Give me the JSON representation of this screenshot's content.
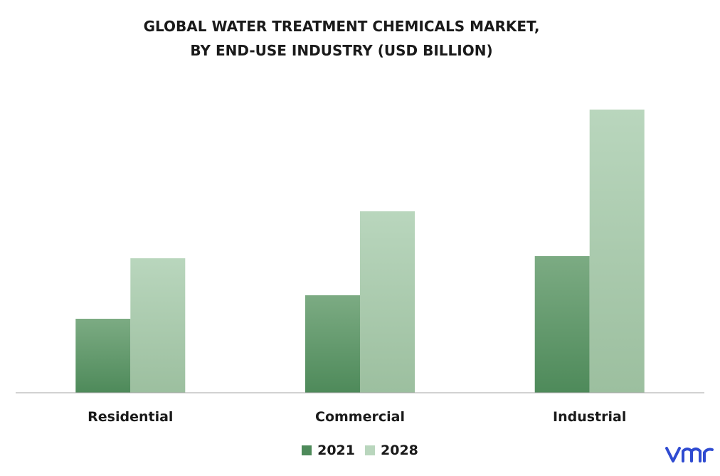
{
  "title_line1": "GLOBAL WATER TREATMENT CHEMICALS MARKET,",
  "title_line2": "BY END-USE INDUSTRY (USD BILLION)",
  "logo_text": "vmr",
  "colors": {
    "series_2021": "#4e8a5a",
    "series_2021_top": "#7cab83",
    "series_2028": "#b9d6bd",
    "series_2028_bottom": "#9cbf9f",
    "axis": "#a6a6a6",
    "logo": "#2f4bd1"
  },
  "chart_data": {
    "type": "bar",
    "title": "GLOBAL WATER TREATMENT CHEMICALS MARKET, BY END-USE INDUSTRY (USD BILLION)",
    "categories": [
      "Residential",
      "Commercial",
      "Industrial"
    ],
    "series": [
      {
        "name": "2021",
        "values": [
          10.4,
          13.7,
          19.2
        ]
      },
      {
        "name": "2028",
        "values": [
          18.9,
          25.5,
          39.8
        ]
      }
    ],
    "ylim": [
      0,
      40
    ],
    "grid": false,
    "legend_position": "bottom"
  }
}
